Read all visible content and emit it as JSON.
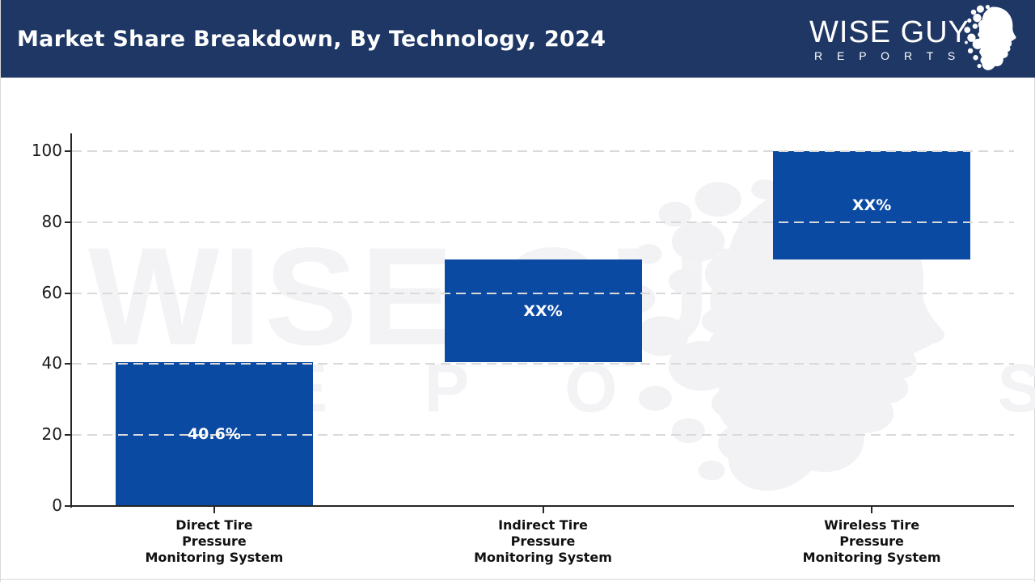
{
  "header": {
    "title": "Market Share Breakdown, By Technology, 2024",
    "logo_line1": "WISE GUY",
    "logo_line2": "R E P O R T S"
  },
  "watermark": {
    "line1": "WISE GUY",
    "line2": "R E P O R T S"
  },
  "colors": {
    "header_bg": "#1E3764",
    "bar": "#0B4AA3",
    "grid": "#D9D9D9",
    "axis": "#262626",
    "watermark": "#F3F3F6",
    "bar_label_text": "#FFFFFF"
  },
  "chart_data": {
    "type": "bar",
    "subtype": "floating-stacked-share-bars",
    "title": "Market Share Breakdown, By Technology, 2024",
    "xlabel": "",
    "ylabel": "",
    "ylim": [
      0,
      105
    ],
    "yticks": [
      0,
      20,
      40,
      60,
      80,
      100
    ],
    "grid": "horizontal-dashed",
    "legend": "none",
    "bar_color": "#0B4AA3",
    "categories": [
      "Direct Tire Pressure Monitoring System",
      "Indirect Tire Pressure Monitoring System",
      "Wireless Tire Pressure Monitoring System"
    ],
    "category_lines": [
      [
        "Direct Tire",
        "Pressure",
        "Monitoring System"
      ],
      [
        "Indirect Tire",
        "Pressure",
        "Monitoring System"
      ],
      [
        "Wireless Tire",
        "Pressure",
        "Monitoring System"
      ]
    ],
    "series": [
      {
        "name": "Direct Tire Pressure Monitoring System",
        "start": 0,
        "end": 40.6,
        "value_label": "40.6%"
      },
      {
        "name": "Indirect Tire Pressure Monitoring System",
        "start": 40.6,
        "end": 69.4,
        "value_label": "XX%"
      },
      {
        "name": "Wireless Tire Pressure Monitoring System",
        "start": 69.4,
        "end": 100,
        "value_label": "XX%"
      }
    ]
  }
}
